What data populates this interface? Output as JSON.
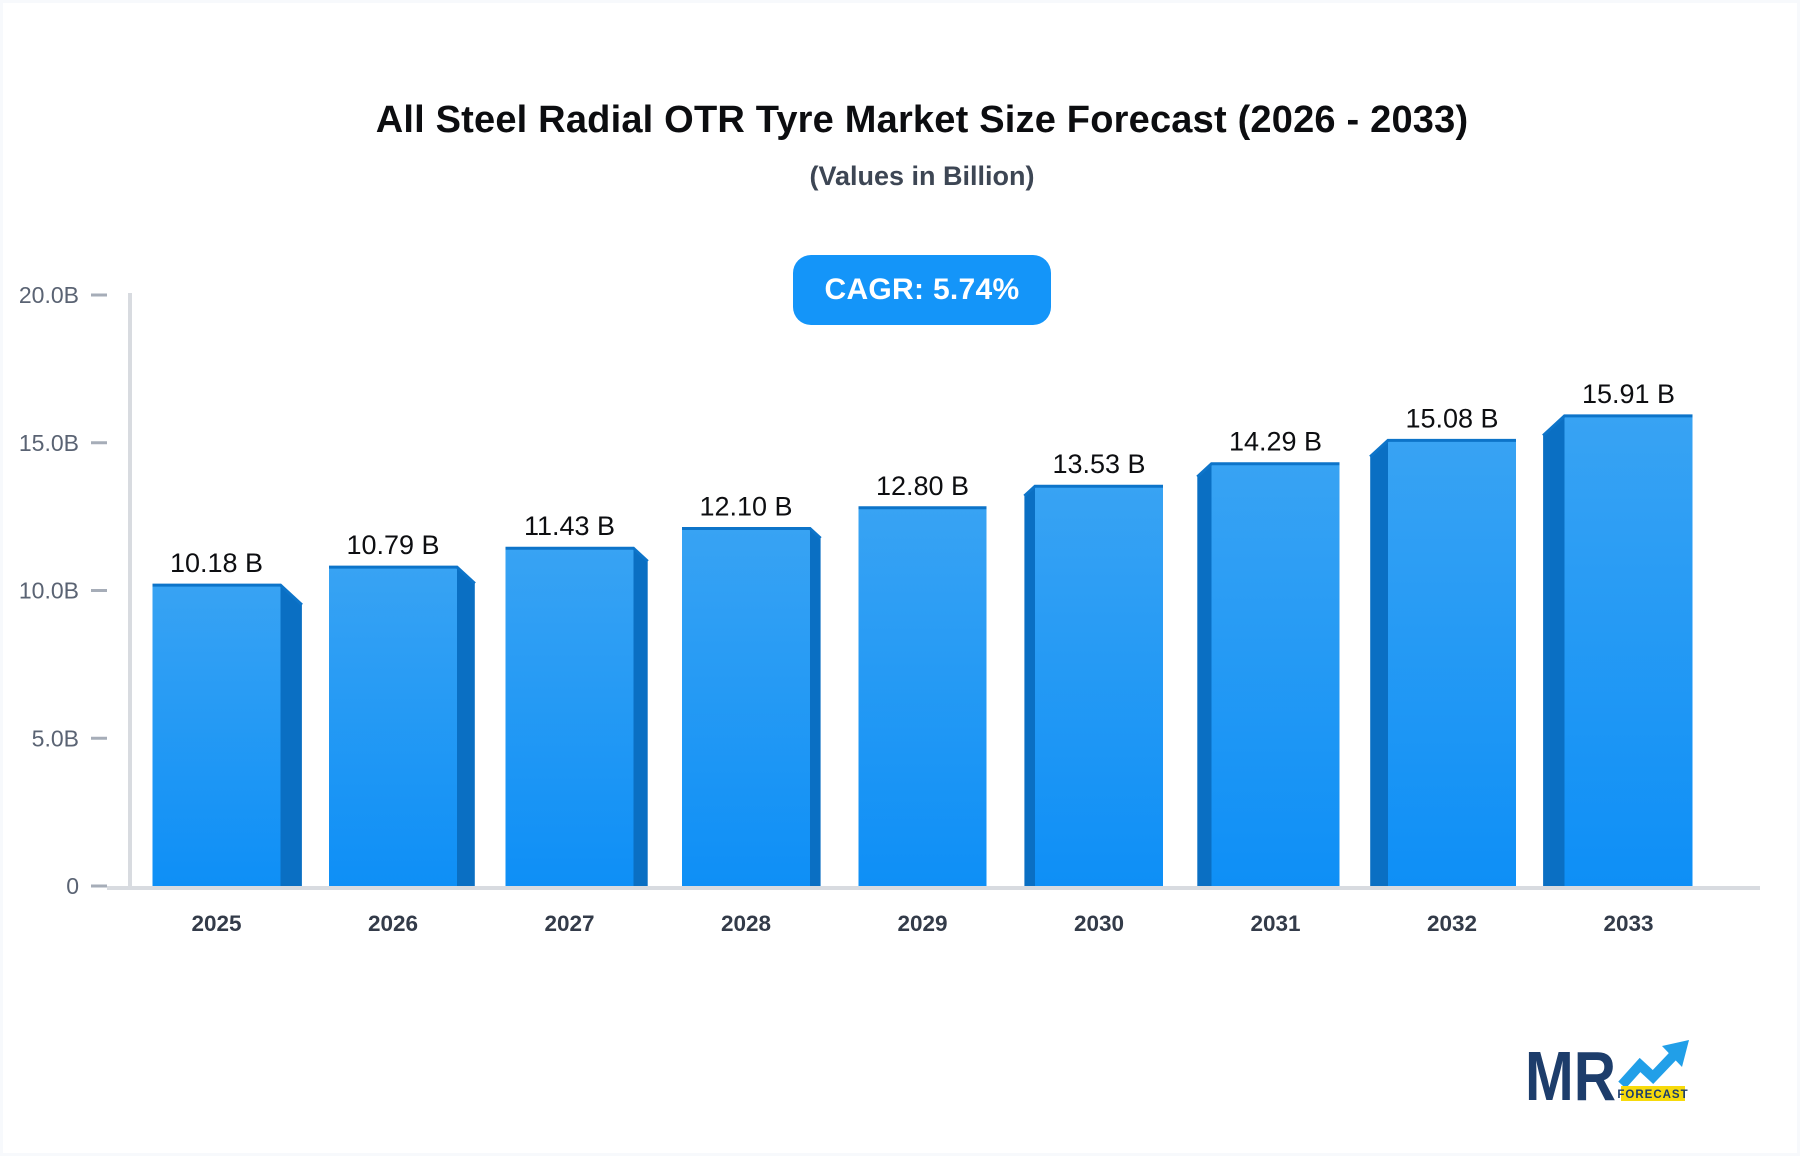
{
  "header": {
    "title": "All Steel Radial OTR Tyre Market Size Forecast (2026 - 2033)",
    "subtitle": "(Values in Billion)",
    "cagr_badge": "CAGR: 5.74%"
  },
  "chart_data": {
    "type": "bar",
    "title": "All Steel Radial OTR Tyre Market Size Forecast (2026 - 2033)",
    "subtitle": "(Values in Billion)",
    "cagr": "5.74%",
    "categories": [
      "2025",
      "2026",
      "2027",
      "2028",
      "2029",
      "2030",
      "2031",
      "2032",
      "2033"
    ],
    "values": [
      10.18,
      10.79,
      11.43,
      12.1,
      12.8,
      13.53,
      14.29,
      15.08,
      15.91
    ],
    "value_labels": [
      "10.18 B",
      "10.79 B",
      "11.43 B",
      "12.10 B",
      "12.80 B",
      "13.53 B",
      "14.29 B",
      "15.08 B",
      "15.91 B"
    ],
    "ylim": [
      0,
      20
    ],
    "yticks": {
      "values": [
        0,
        5,
        10,
        15,
        20
      ],
      "labels": [
        "0",
        "5.0B",
        "10.0B",
        "15.0B",
        "20.0B"
      ]
    },
    "grid": false,
    "legend": false,
    "bar_style": "3d-perspective"
  },
  "logo": {
    "name": "MR Forecast",
    "text_main": "MR",
    "text_sub": "FORECAST"
  },
  "colors": {
    "bar_face_top": "#38a3f3",
    "bar_face_bottom": "#0e8ff6",
    "bar_side": "#0a6fc3",
    "bar_top_edge": "#0d74c9",
    "badge_bg": "#1495f9",
    "badge_text": "#ffffff",
    "axis_line": "#d8dbe0",
    "tick_dash": "#a6adb8",
    "y_label": "#5a6373",
    "x_label": "#333b49",
    "value_label": "#0d0e11",
    "title": "#0c0d10",
    "subtitle": "#3d4654",
    "logo_navy": "#1d3d6b",
    "logo_blue": "#219fe8",
    "logo_yellow": "#f7da0b",
    "page_bg": "#f7f9fc",
    "card_bg": "#ffffff"
  }
}
